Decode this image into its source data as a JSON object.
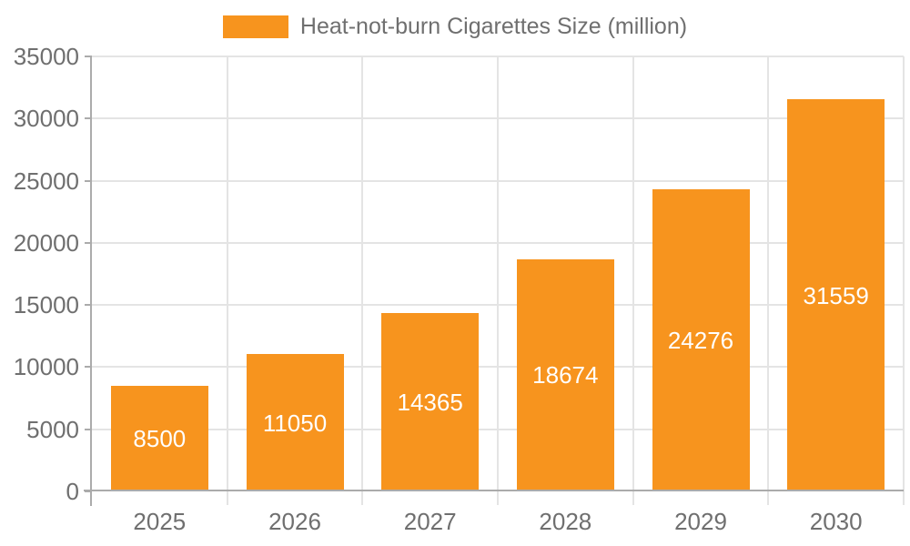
{
  "legend": {
    "label": "Heat-not-burn Cigarettes Size (million)"
  },
  "colors": {
    "bar": "#F7941E",
    "axis_line": "#ABABAB",
    "grid_line": "#E4E4E4",
    "text": "#6F6F6F",
    "value_label": "#FFFFFF",
    "background": "#FFFFFF"
  },
  "chart_data": {
    "type": "bar",
    "title": "",
    "series_name": "Heat-not-burn Cigarettes Size (million)",
    "categories": [
      "2025",
      "2026",
      "2027",
      "2028",
      "2029",
      "2030"
    ],
    "values": [
      8500,
      11050,
      14365,
      18674,
      24276,
      31559
    ],
    "xlabel": "",
    "ylabel": "",
    "ylim": [
      0,
      35000
    ],
    "yticks": [
      0,
      5000,
      10000,
      15000,
      20000,
      25000,
      30000,
      35000
    ],
    "grid": true,
    "legend_position": "top-center",
    "value_labels": "inside-center"
  }
}
